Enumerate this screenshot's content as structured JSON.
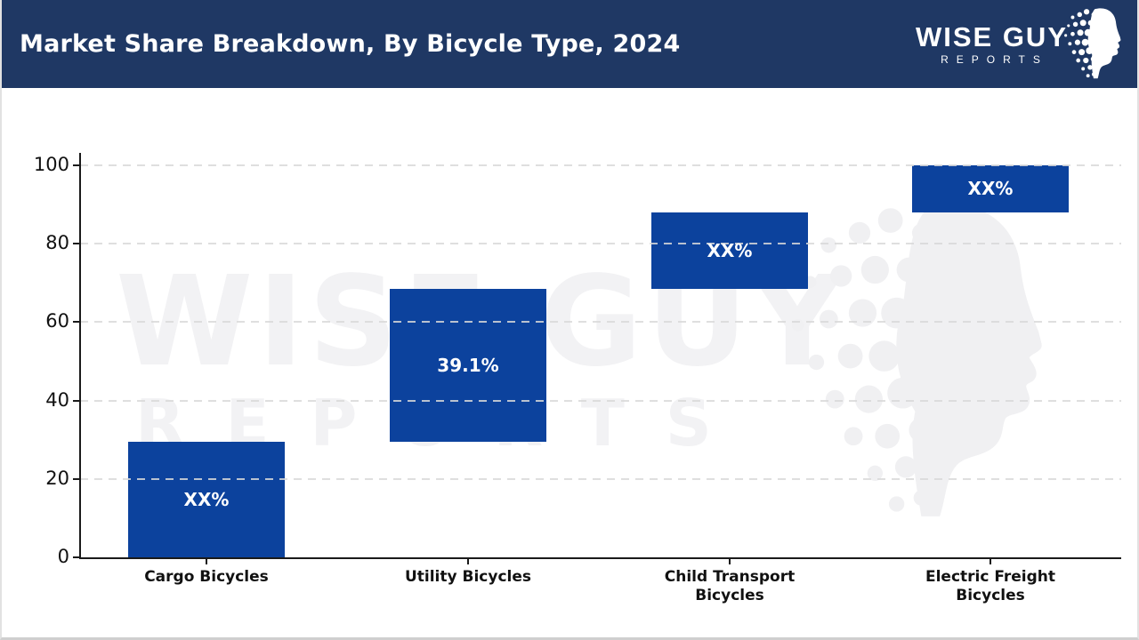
{
  "header": {
    "title": "Market Share Breakdown, By Bicycle Type, 2024",
    "logo": {
      "name": "WISE GUY",
      "sub": "REPORTS"
    }
  },
  "watermark": {
    "line1": "WISE GUY",
    "line2": "REPORTS"
  },
  "chart_data": {
    "type": "bar",
    "variant": "waterfall",
    "title": "Market Share Breakdown, By Bicycle Type, 2024",
    "categories": [
      "Cargo Bicycles",
      "Utility Bicycles",
      "Child Transport Bicycles",
      "Electric Freight Bicycles"
    ],
    "segments": [
      {
        "category": "Cargo Bicycles",
        "start": 0,
        "end": 29.4,
        "label": "XX%"
      },
      {
        "category": "Utility Bicycles",
        "start": 29.4,
        "end": 68.5,
        "label": "39.1%"
      },
      {
        "category": "Child Transport Bicycles",
        "start": 68.5,
        "end": 88.0,
        "label": "XX%"
      },
      {
        "category": "Electric Freight Bicycles",
        "start": 88.0,
        "end": 100.0,
        "label": "XX%"
      }
    ],
    "ylim": [
      0,
      100
    ],
    "yticks": [
      0,
      20,
      40,
      60,
      80,
      100
    ],
    "xlabel": "",
    "ylabel": "",
    "grid": {
      "axis": "y",
      "style": "dashed",
      "color": "#d9d9d9"
    },
    "legend": "none",
    "colors": {
      "bar": "#0c429d",
      "bar_label": "#ffffff",
      "axis": "#1a1a1a",
      "header_bg": "#1f3864",
      "watermark": "#f2f2f4"
    }
  }
}
